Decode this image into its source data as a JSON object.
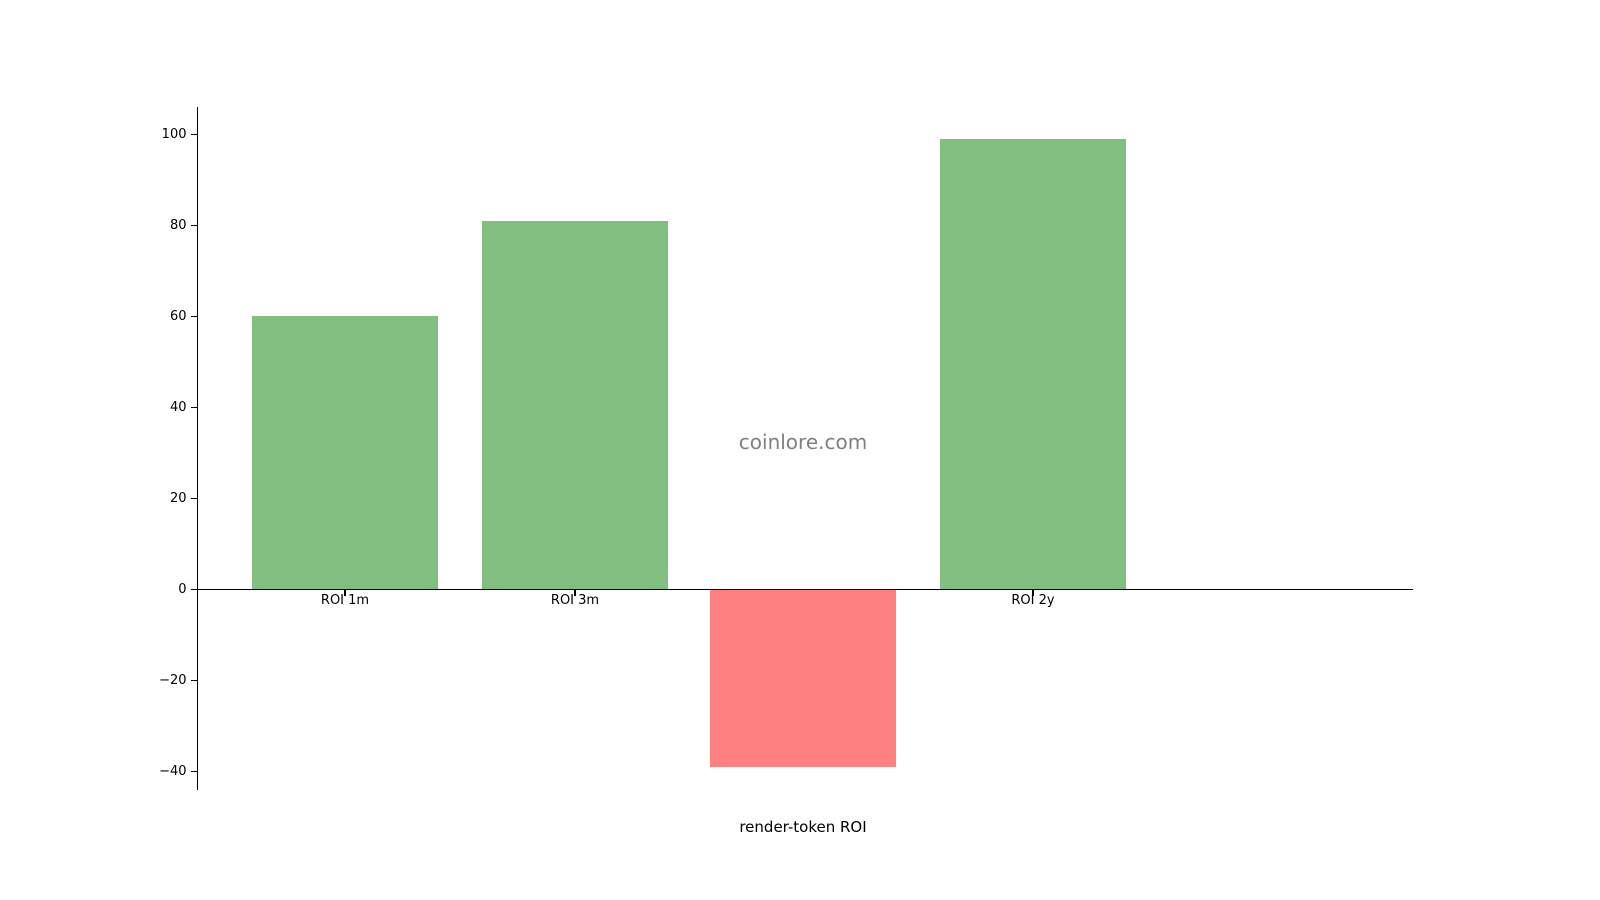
{
  "chart_data": {
    "type": "bar",
    "title": "render-token ROI",
    "watermark": "coinlore.com",
    "categories": [
      "ROI 1m",
      "ROI 3m",
      "",
      "ROI 2y"
    ],
    "values": [
      60,
      81,
      -39,
      99
    ],
    "bar_colors": [
      "#80bf80",
      "#80bf80",
      "#ff8080",
      "#80bf80"
    ],
    "positive_color": "#80bf80",
    "negative_color": "#ff8080",
    "yticks": [
      100,
      80,
      60,
      40,
      20,
      0,
      -20,
      -40
    ],
    "ylim": [
      -44,
      106
    ],
    "xlabel": "",
    "ylabel": "",
    "grid": false,
    "legend": false,
    "axis_color": "#000000",
    "watermark_color": "#808080"
  }
}
